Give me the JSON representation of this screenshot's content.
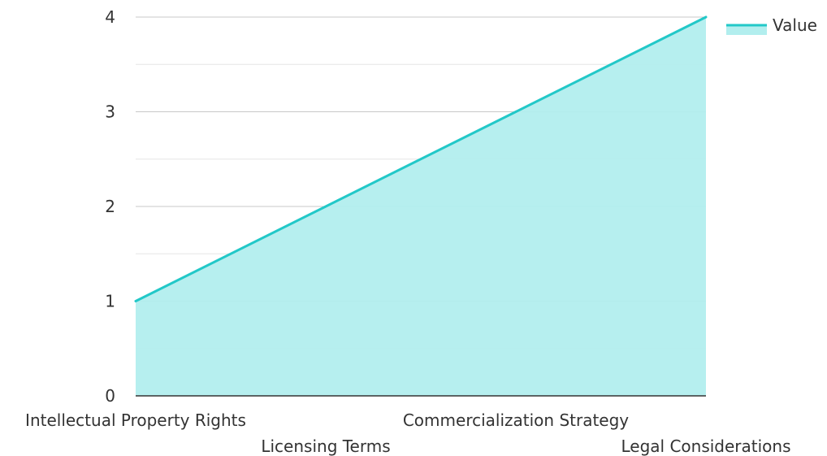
{
  "chart_data": {
    "type": "area",
    "categories": [
      "Intellectual Property Rights",
      "Licensing Terms",
      "Commercialization Strategy",
      "Legal Considerations"
    ],
    "series": [
      {
        "name": "Value",
        "values": [
          1,
          2,
          3,
          4
        ]
      }
    ],
    "ylim": [
      0,
      4
    ],
    "yticks": [
      0,
      1,
      2,
      3,
      4
    ],
    "grid": true,
    "legend": "top-right",
    "colors": {
      "line": "#22c8c8",
      "fill": "#b2eeee",
      "major_grid": "#c8c8c8",
      "minor_grid": "#e6e6e6",
      "axis": "#333333"
    }
  }
}
